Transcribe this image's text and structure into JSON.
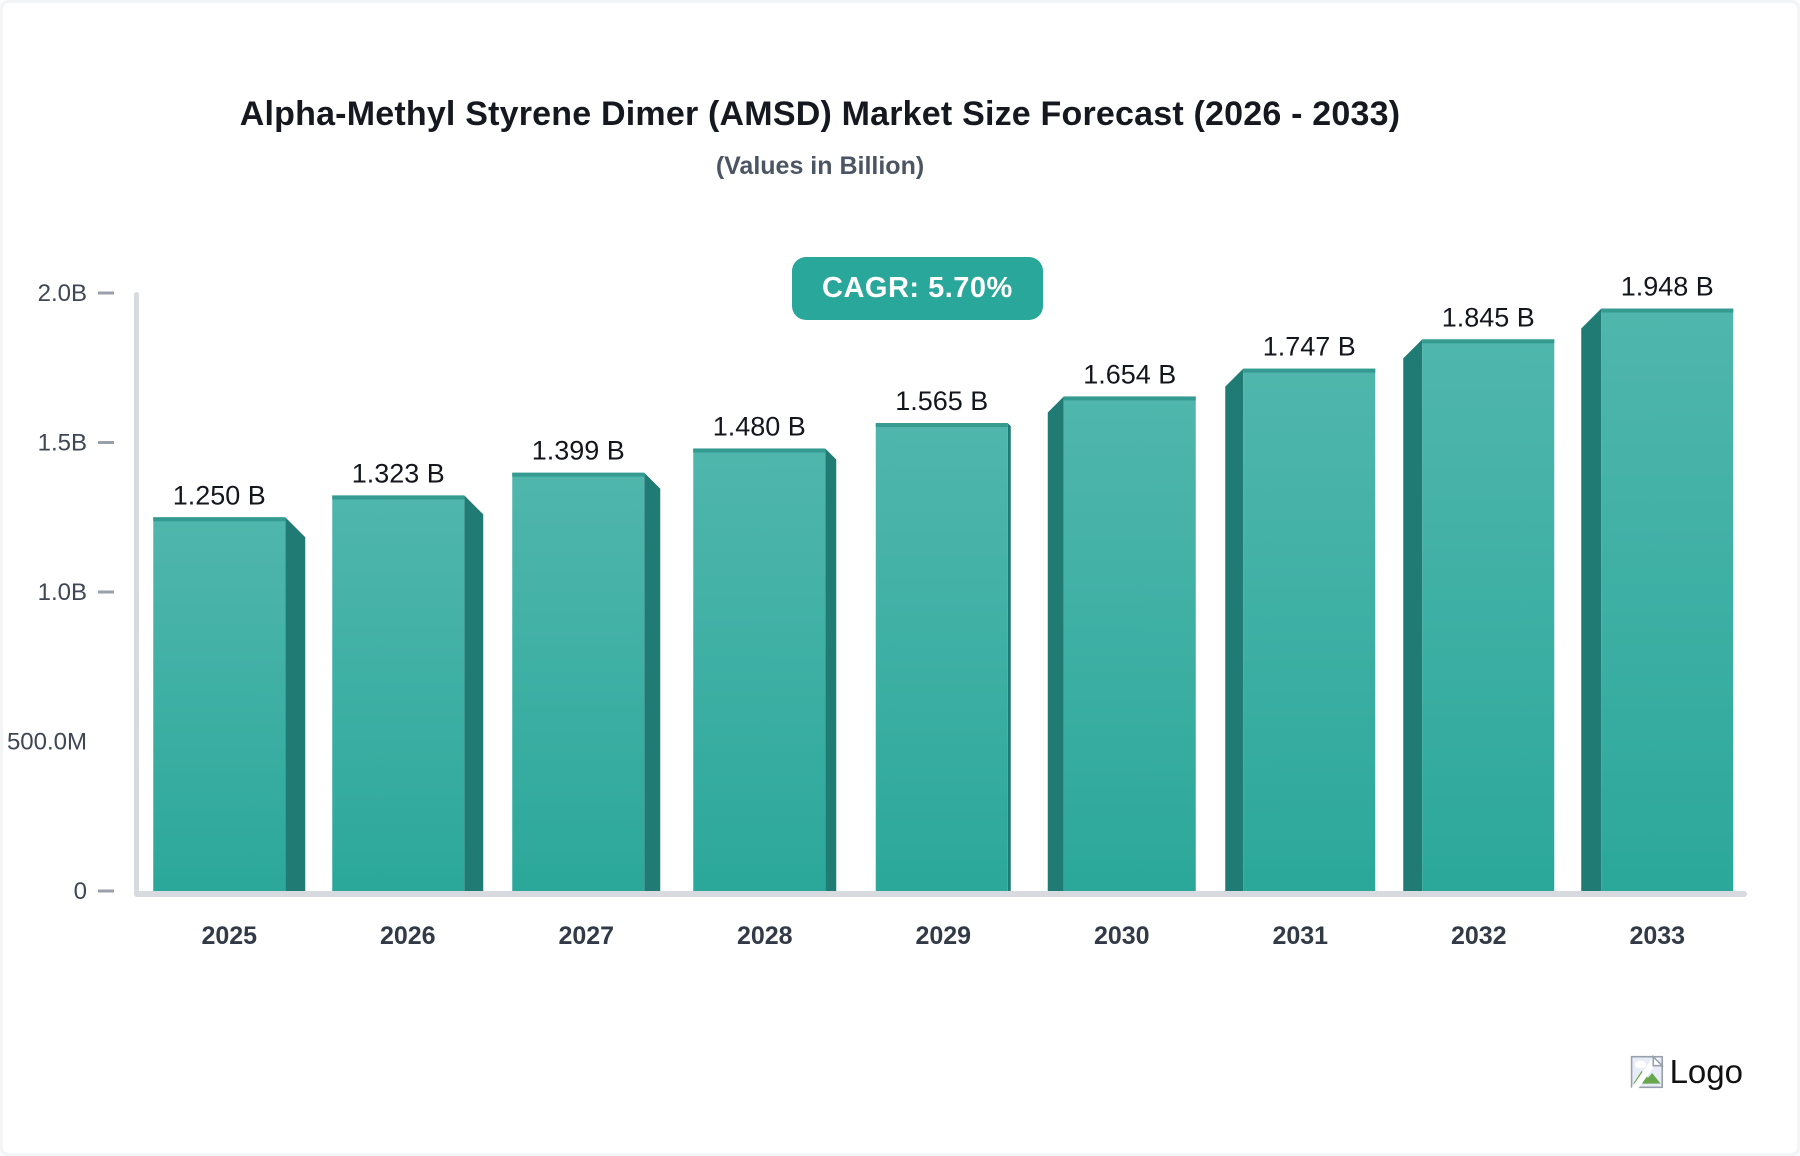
{
  "title": "Alpha-Methyl Styrene Dimer (AMSD) Market Size Forecast (2026 - 2033)",
  "subtitle": "(Values in Billion)",
  "badge": {
    "label": "CAGR: 5.70%"
  },
  "logo": {
    "alt_text": "Logo"
  },
  "colors": {
    "badge_bg": "#2aa79b",
    "bar_face_top": "#50b6ad",
    "bar_face_bottom": "#2ba89a",
    "bar_side": "#1f7b74",
    "bar_top_edge": "#359a90",
    "axis_line": "#d7dade",
    "tick_dash": "#9aa0ab",
    "y_label": "#3f4654",
    "x_label": "#333a47",
    "value_label": "#14161d",
    "title_color": "#16181f",
    "subtitle_color": "#4b5563"
  },
  "chart_data": {
    "type": "bar",
    "title": "Alpha-Methyl Styrene Dimer (AMSD) Market Size Forecast (2026 - 2033)",
    "subtitle": "(Values in Billion)",
    "annotation": "CAGR: 5.70%",
    "categories": [
      "2025",
      "2026",
      "2027",
      "2028",
      "2029",
      "2030",
      "2031",
      "2032",
      "2033"
    ],
    "values_billion": [
      1.25,
      1.323,
      1.399,
      1.48,
      1.565,
      1.654,
      1.747,
      1.845,
      1.948
    ],
    "bar_labels": [
      "1.250 B",
      "1.323 B",
      "1.399 B",
      "1.480 B",
      "1.565 B",
      "1.654 B",
      "1.747 B",
      "1.845 B",
      "1.948 B"
    ],
    "xlabel": "",
    "ylabel": "",
    "ylim": [
      0,
      2.0
    ],
    "y_ticks": [
      {
        "label": "2.0B",
        "value": 2.0,
        "dash": true
      },
      {
        "label": "1.5B",
        "value": 1.5,
        "dash": true
      },
      {
        "label": "1.0B",
        "value": 1.0,
        "dash": true
      },
      {
        "label": "500.0M",
        "value": 0.5,
        "dash": false
      },
      {
        "label": "0",
        "value": 0.0,
        "dash": true
      }
    ],
    "grid": false,
    "legend": null,
    "bar_style": "3d-perspective-teal"
  }
}
